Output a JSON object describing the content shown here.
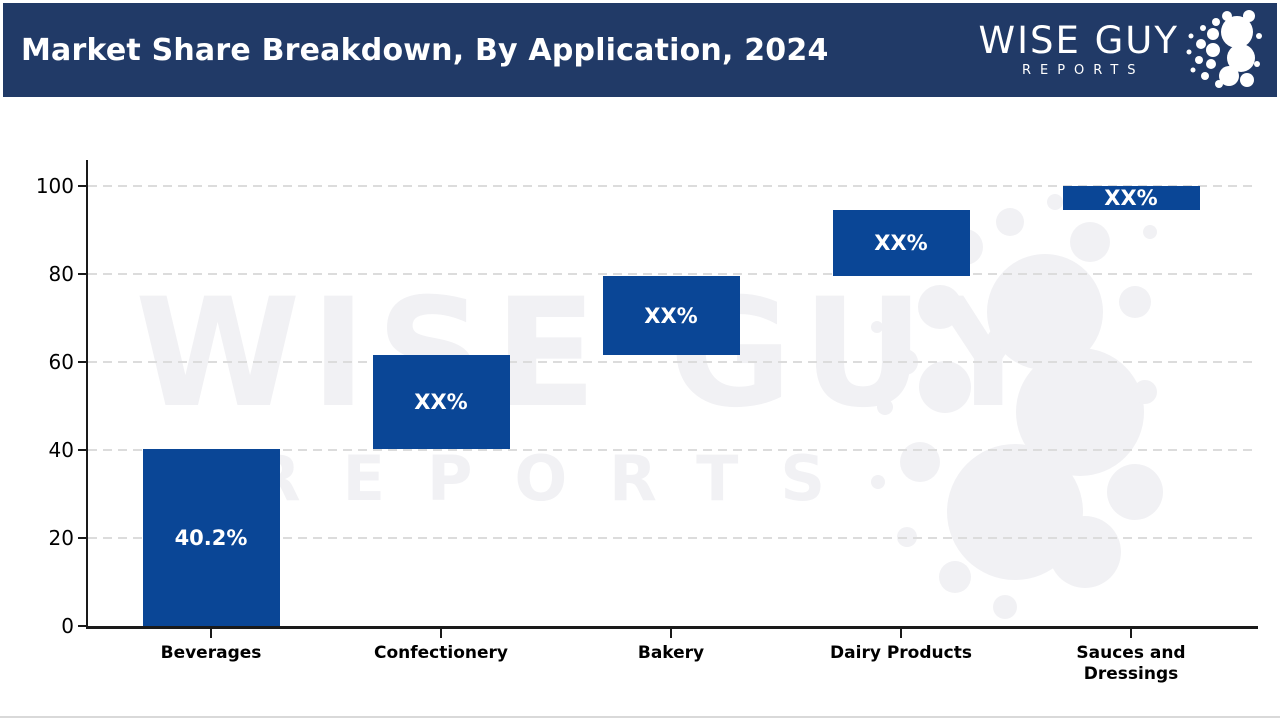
{
  "header": {
    "title": "Market Share Breakdown, By Application, 2024",
    "bg_color": "#213a67",
    "brand": {
      "name_top": "WISE GUY",
      "name_bottom": "REPORTS"
    }
  },
  "watermark": {
    "line1": "WISE GUY",
    "line2": "REPORTS"
  },
  "chart_data": {
    "type": "bar",
    "variant": "waterfall",
    "title": "Market Share Breakdown, By Application, 2024",
    "categories": [
      "Beverages",
      "Confectionery",
      "Bakery",
      "Dairy Products",
      "Sauces and Dressings"
    ],
    "series": [
      {
        "name": "Market Share (%)",
        "base": [
          0,
          40.2,
          61.5,
          79.5,
          94.5
        ],
        "top": [
          40.2,
          61.5,
          79.5,
          94.5,
          100
        ]
      }
    ],
    "bar_labels": [
      "40.2%",
      "XX%",
      "XX%",
      "XX%",
      "XX%"
    ],
    "bar_color": "#0a4696",
    "bar_label_color": "#ffffff",
    "yticks": [
      0,
      20,
      40,
      60,
      80,
      100
    ],
    "ylim": [
      0,
      105
    ],
    "xlabel": "",
    "ylabel": "",
    "grid": "horizontal dashed",
    "legend": "none"
  }
}
